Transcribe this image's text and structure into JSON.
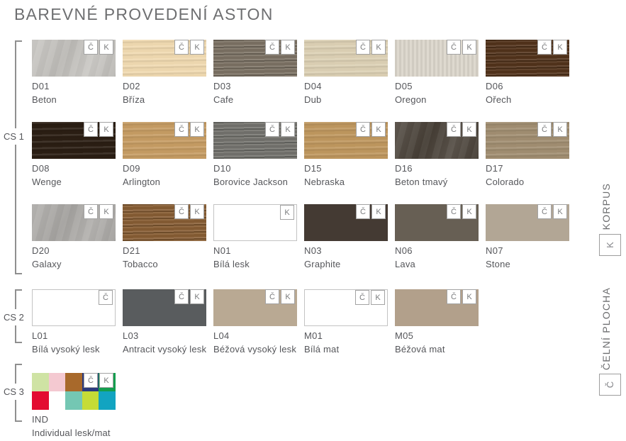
{
  "title": "BAREVNÉ PROVEDENÍ ASTON",
  "legend": {
    "korpus_label": "KORPUS",
    "korpus_letter": "K",
    "front_label": "ČELNÍ PLOCHA",
    "front_letter": "Č"
  },
  "groups": [
    {
      "label": "CS 1",
      "rows": [
        [
          {
            "code": "D01",
            "name": "Beton",
            "color": "#c6c4c0",
            "texture": "concrete",
            "badges": [
              "Č",
              "K"
            ]
          },
          {
            "code": "D02",
            "name": "Bříza",
            "color": "#f1dab1",
            "texture": "wood",
            "badges": [
              "Č",
              "K"
            ]
          },
          {
            "code": "D03",
            "name": "Cafe",
            "color": "#7e7466",
            "texture": "woodstrong",
            "badges": [
              "Č",
              "K"
            ]
          },
          {
            "code": "D04",
            "name": "Dub",
            "color": "#ddd1b5",
            "texture": "wood",
            "badges": [
              "Č",
              "K"
            ]
          },
          {
            "code": "D05",
            "name": "Oregon",
            "color": "#dbd6cb",
            "texture": "vert",
            "badges": [
              "Č",
              "K"
            ]
          },
          {
            "code": "D06",
            "name": "Ořech",
            "color": "#54341c",
            "texture": "woodstrong",
            "badges": [
              "Č",
              "K"
            ]
          }
        ],
        [
          {
            "code": "D08",
            "name": "Wenge",
            "color": "#2b1e13",
            "texture": "wood",
            "badges": [
              "Č",
              "K"
            ]
          },
          {
            "code": "D09",
            "name": "Arlington",
            "color": "#c79d64",
            "texture": "wood",
            "badges": [
              "Č",
              "K"
            ]
          },
          {
            "code": "D10",
            "name": "Borovice Jackson",
            "color": "#767570",
            "texture": "woodstrong",
            "badges": [
              "Č",
              "K"
            ]
          },
          {
            "code": "D15",
            "name": "Nebraska",
            "color": "#c0985f",
            "texture": "wood",
            "badges": [
              "Č",
              "K"
            ]
          },
          {
            "code": "D16",
            "name": "Beton tmavý",
            "color": "#494138",
            "texture": "concrete",
            "badges": [
              "Č",
              "K"
            ]
          },
          {
            "code": "D17",
            "name": "Colorado",
            "color": "#a28f72",
            "texture": "wood",
            "badges": [
              "Č",
              "K"
            ]
          }
        ],
        [
          {
            "code": "D20",
            "name": "Galaxy",
            "color": "#adaba8",
            "texture": "concrete",
            "badges": [
              "Č",
              "K"
            ]
          },
          {
            "code": "D21",
            "name": "Tobacco",
            "color": "#8a5f35",
            "texture": "woodstrong",
            "badges": [
              "Č",
              "K"
            ]
          },
          {
            "code": "N01",
            "name": "Bílá lesk",
            "color": "#ffffff",
            "texture": "plain",
            "badges": [
              "K"
            ]
          },
          {
            "code": "N03",
            "name": "Graphite",
            "color": "#443a33",
            "texture": "plain",
            "badges": [
              "Č",
              "K"
            ]
          },
          {
            "code": "N06",
            "name": "Lava",
            "color": "#675f54",
            "texture": "plain",
            "badges": [
              "Č",
              "K"
            ]
          },
          {
            "code": "N07",
            "name": "Stone",
            "color": "#b2a695",
            "texture": "plain",
            "badges": [
              "Č",
              "K"
            ]
          }
        ]
      ]
    },
    {
      "label": "CS 2",
      "rows": [
        [
          {
            "code": "L01",
            "name": "Bílá vysoký lesk",
            "color": "#ffffff",
            "texture": "plain",
            "badges": [
              "Č"
            ]
          },
          {
            "code": "L03",
            "name": "Antracit vysoký lesk",
            "color": "#595c5e",
            "texture": "plain",
            "badges": [
              "Č",
              "K"
            ]
          },
          {
            "code": "L04",
            "name": "Béžová vysoký lesk",
            "color": "#b9a993",
            "texture": "plain",
            "badges": [
              "Č",
              "K"
            ]
          },
          {
            "code": "M01",
            "name": "Bílá mat",
            "color": "#ffffff",
            "texture": "plain",
            "badges": [
              "Č",
              "K"
            ]
          },
          {
            "code": "M05",
            "name": "Béžová mat",
            "color": "#b2a08b",
            "texture": "plain",
            "badges": [
              "Č",
              "K"
            ]
          }
        ]
      ]
    },
    {
      "label": "CS 3",
      "rows": [
        [
          {
            "code": "IND",
            "name": "Individual lesk/mat",
            "badges": [
              "Č",
              "K"
            ],
            "cells": [
              [
                "#cfe3a4",
                "#f4c9d1",
                "#a8692b",
                "#2b3a7e",
                "#149e4e"
              ],
              [
                "#e30c31",
                "#ffffff",
                "#74c7b3",
                "#c5dc36",
                "#12a4c1"
              ]
            ]
          }
        ]
      ]
    }
  ]
}
